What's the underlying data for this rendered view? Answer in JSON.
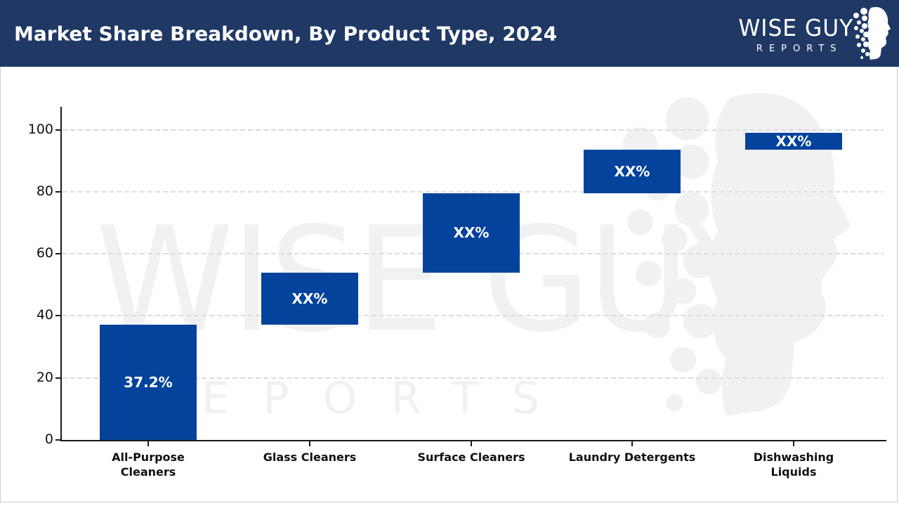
{
  "header": {
    "title": "Market Share Breakdown, By Product Type, 2024",
    "bg_color": "#1f3864",
    "logo": {
      "line1": "WISE GUY",
      "line2": "REPORTS"
    }
  },
  "watermark": {
    "line1": "WISE GUY",
    "line2": "REPORTS"
  },
  "chart_data": {
    "type": "bar",
    "subtype": "waterfall",
    "title": "Market Share Breakdown, By Product Type, 2024",
    "xlabel": "",
    "ylabel": "",
    "categories": [
      "All-Purpose Cleaners",
      "Glass Cleaners",
      "Surface Cleaners",
      "Laundry Detergents",
      "Dishwashing Liquids"
    ],
    "category_lines": [
      [
        "All-Purpose",
        "Cleaners"
      ],
      [
        "Glass Cleaners"
      ],
      [
        "Surface Cleaners"
      ],
      [
        "Laundry Detergents"
      ],
      [
        "Dishwashing",
        "Liquids"
      ]
    ],
    "series": [
      {
        "name": "Market Share (%)",
        "segments": [
          {
            "category": "All-Purpose Cleaners",
            "label": "37.2%",
            "start": 0,
            "end": 37.2
          },
          {
            "category": "Glass Cleaners",
            "label": "XX%",
            "start": 37.2,
            "end": 54.0
          },
          {
            "category": "Surface Cleaners",
            "label": "XX%",
            "start": 54.0,
            "end": 79.6
          },
          {
            "category": "Laundry Detergents",
            "label": "XX%",
            "start": 79.6,
            "end": 93.5
          },
          {
            "category": "Dishwashing Liquids",
            "label": "XX%",
            "start": 93.5,
            "end": 99.0
          }
        ]
      }
    ],
    "yticks": [
      0,
      20,
      40,
      60,
      80,
      100
    ],
    "ylim": [
      0,
      105
    ],
    "grid": "horizontal-dashed",
    "legend": "none",
    "bar_color": "#04439c",
    "bar_label_color": "#ffffff"
  }
}
